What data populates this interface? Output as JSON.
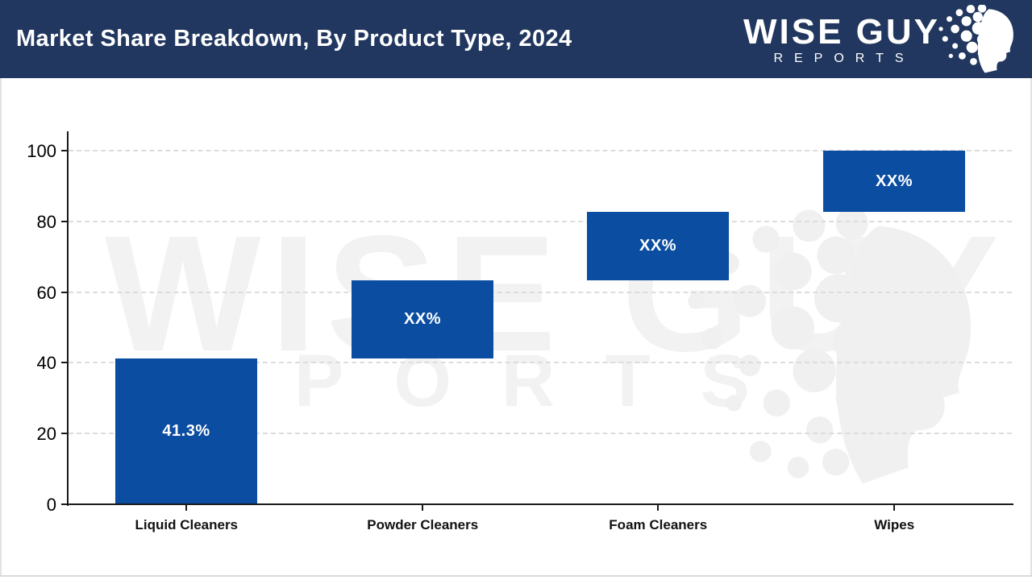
{
  "header": {
    "title": "Market Share Breakdown, By Product Type, 2024",
    "background": "#21375f",
    "logo": {
      "line1": "WISE GUY",
      "line2": "REPORTS"
    }
  },
  "watermark": {
    "line1": "WISE GUY",
    "line2": "PORTS"
  },
  "chart_data": {
    "type": "bar",
    "subtype": "waterfall",
    "title": "Market Share Breakdown, By Product Type, 2024",
    "xlabel": "",
    "ylabel": "",
    "categories": [
      "Liquid Cleaners",
      "Powder Cleaners",
      "Foam Cleaners",
      "Wipes"
    ],
    "segments": [
      {
        "category": "Liquid Cleaners",
        "start": 0,
        "end": 41.3,
        "label": "41.3%"
      },
      {
        "category": "Powder Cleaners",
        "start": 41.3,
        "end": 63.3,
        "label": "XX%"
      },
      {
        "category": "Foam Cleaners",
        "start": 63.3,
        "end": 82.7,
        "label": "XX%"
      },
      {
        "category": "Wipes",
        "start": 82.7,
        "end": 100,
        "label": "XX%"
      }
    ],
    "yticks": [
      0,
      20,
      40,
      60,
      80,
      100
    ],
    "ylim": [
      0,
      105
    ],
    "grid": "horizontal-dashed",
    "bar_color": "#0b4da1",
    "bar_label_color": "#ffffff"
  }
}
